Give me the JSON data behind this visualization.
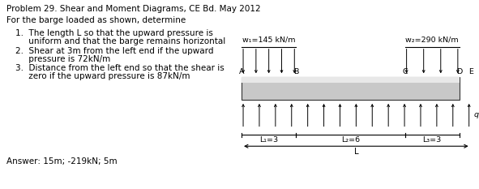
{
  "title_line1": "Problem 29. Shear and Moment Diagrams, CE Bd. May 2012",
  "title_line2": "For the barge loaded as shown, determine",
  "item1a": "1.  The length L so that the upward pressure is",
  "item1b": "     uniform and that the barge remains horizontal",
  "item2a": "2.  Shear at 3m from the left end if the upward",
  "item2b": "     pressure is 72kN/m",
  "item3a": "3.  Distance from the left end so that the shear is",
  "item3b": "     zero if the upward pressure is 87kN/m",
  "answer": "Answer: 15m; -219kN; 5m",
  "w1_label": "w₁=145 kN/m",
  "w2_label": "w₂=290 kN/m",
  "q_label": "q",
  "L1_label": "L₁=3",
  "L2_label": "L₂=6",
  "L3_label": "L₃=3",
  "L_label": "L",
  "barge_color": "#c8c8c8",
  "barge_top_color": "#e8e8e8",
  "barge_edge": "#333333",
  "bg_color": "#ffffff",
  "text_color": "#000000",
  "fontsize_main": 7.5,
  "fontsize_small": 6.8
}
